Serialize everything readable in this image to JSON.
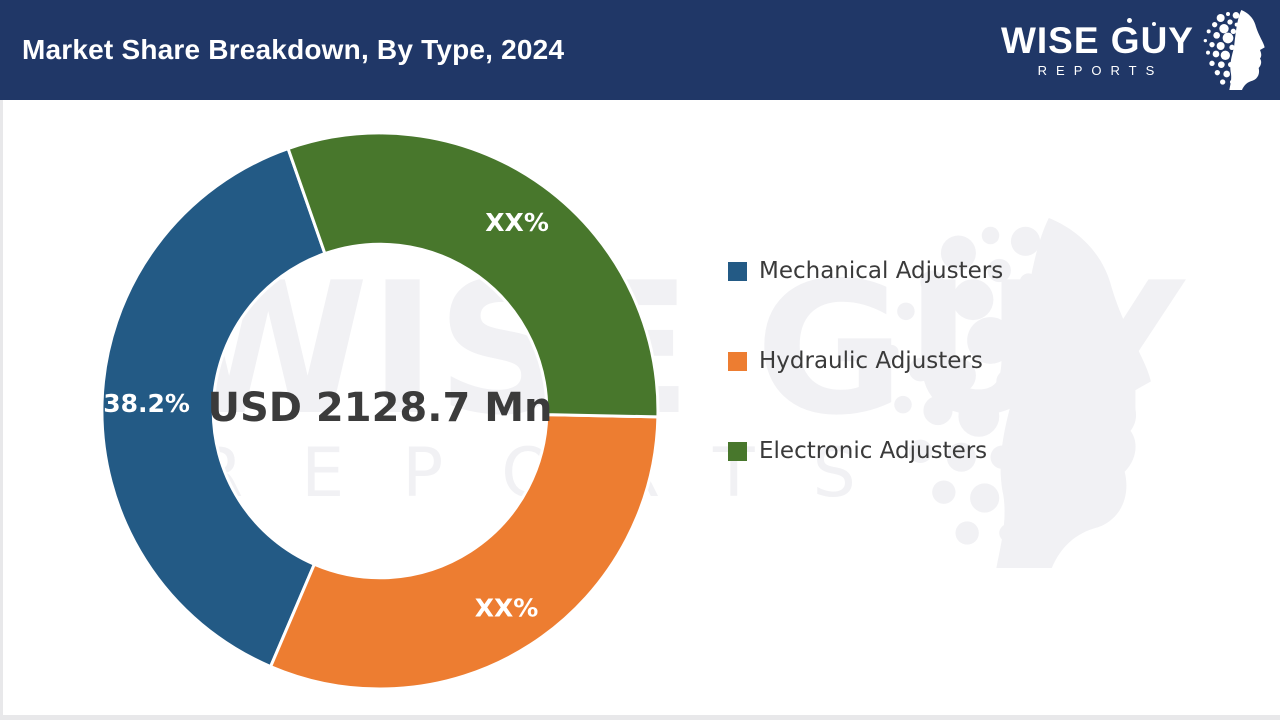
{
  "header": {
    "title": "Market Share Breakdown, By Type, 2024"
  },
  "logo": {
    "brand": "WISE GUY",
    "sub": "REPORTS"
  },
  "watermark": {
    "line1": "WISE GUY",
    "line2": "REPORTS"
  },
  "chart_data": {
    "type": "pie",
    "subtype": "donut",
    "title": "Market Share Breakdown, By Type, 2024",
    "center_label": "USD 2128.7 Mn",
    "start_angle_deg_ccw_from_east": 109.3,
    "direction": "counterclockwise",
    "donut_hole_ratio": 0.6,
    "label_distance_ratio": 0.84,
    "legend_position": "right",
    "segments": [
      {
        "name": "Mechanical Adjusters",
        "label": "38.2%",
        "value": 38.2,
        "color": "#235a85"
      },
      {
        "name": "Hydraulic Adjusters",
        "label": "XX%",
        "value": 31.1,
        "color": "#ed7d31"
      },
      {
        "name": "Electronic Adjusters",
        "label": "XX%",
        "value": 30.7,
        "color": "#48772c"
      }
    ]
  },
  "colors": {
    "header_bg": "#203767",
    "watermark": "#f1f1f4",
    "center_text": "#3b3b3b",
    "legend_text": "#3a3a3a",
    "slice_separator": "#ffffff"
  }
}
